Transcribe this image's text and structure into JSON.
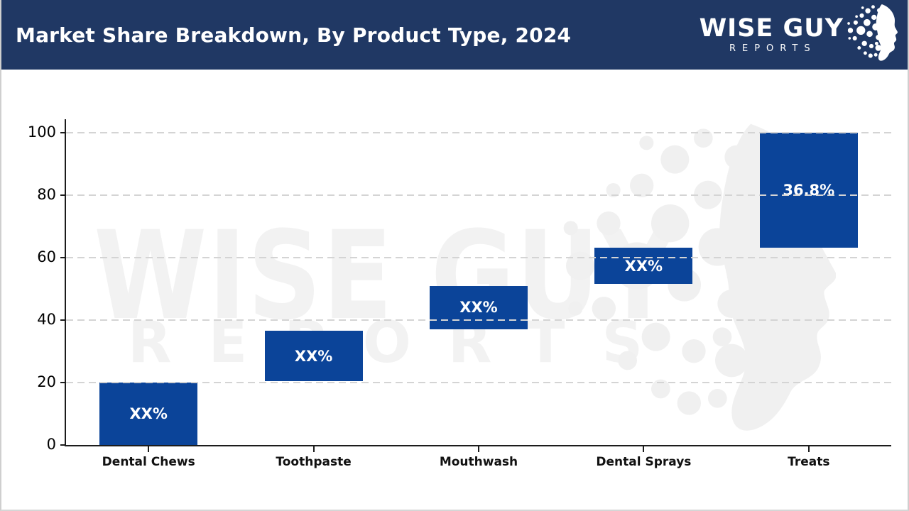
{
  "header": {
    "title": "Market Share Breakdown, By Product Type, 2024",
    "logo": {
      "line1": "WISE GUY",
      "line2": "REPORTS"
    }
  },
  "watermark": {
    "line1": "WISE GUY",
    "line2": "REPORTS"
  },
  "colors": {
    "header_bg": "#203864",
    "bar": "#0b4499",
    "grid": "#d4d4d4",
    "axis": "#1c1c1c",
    "bar_label_text": "#ffffff",
    "watermark": "#f2f2f2"
  },
  "chart_data": {
    "type": "bar",
    "subtype": "waterfall",
    "title": "Market Share Breakdown, By Product Type, 2024",
    "categories": [
      "Dental Chews",
      "Toothpaste",
      "Mouthwash",
      "Dental Sprays",
      "Treats"
    ],
    "bars": [
      {
        "category": "Dental Chews",
        "start": 0,
        "end": 20,
        "label": "XX%"
      },
      {
        "category": "Toothpaste",
        "start": 20.5,
        "end": 36.5,
        "label": "XX%"
      },
      {
        "category": "Mouthwash",
        "start": 37,
        "end": 51,
        "label": "XX%"
      },
      {
        "category": "Dental Sprays",
        "start": 51.5,
        "end": 63.2,
        "label": "XX%"
      },
      {
        "category": "Treats",
        "start": 63.2,
        "end": 100,
        "label": "36.8%"
      }
    ],
    "yticks": [
      0,
      20,
      40,
      60,
      80,
      100
    ],
    "ylim": [
      0,
      100
    ],
    "xlabel": "",
    "ylabel": "",
    "grid": "horizontal-dashed",
    "legend": "none"
  }
}
